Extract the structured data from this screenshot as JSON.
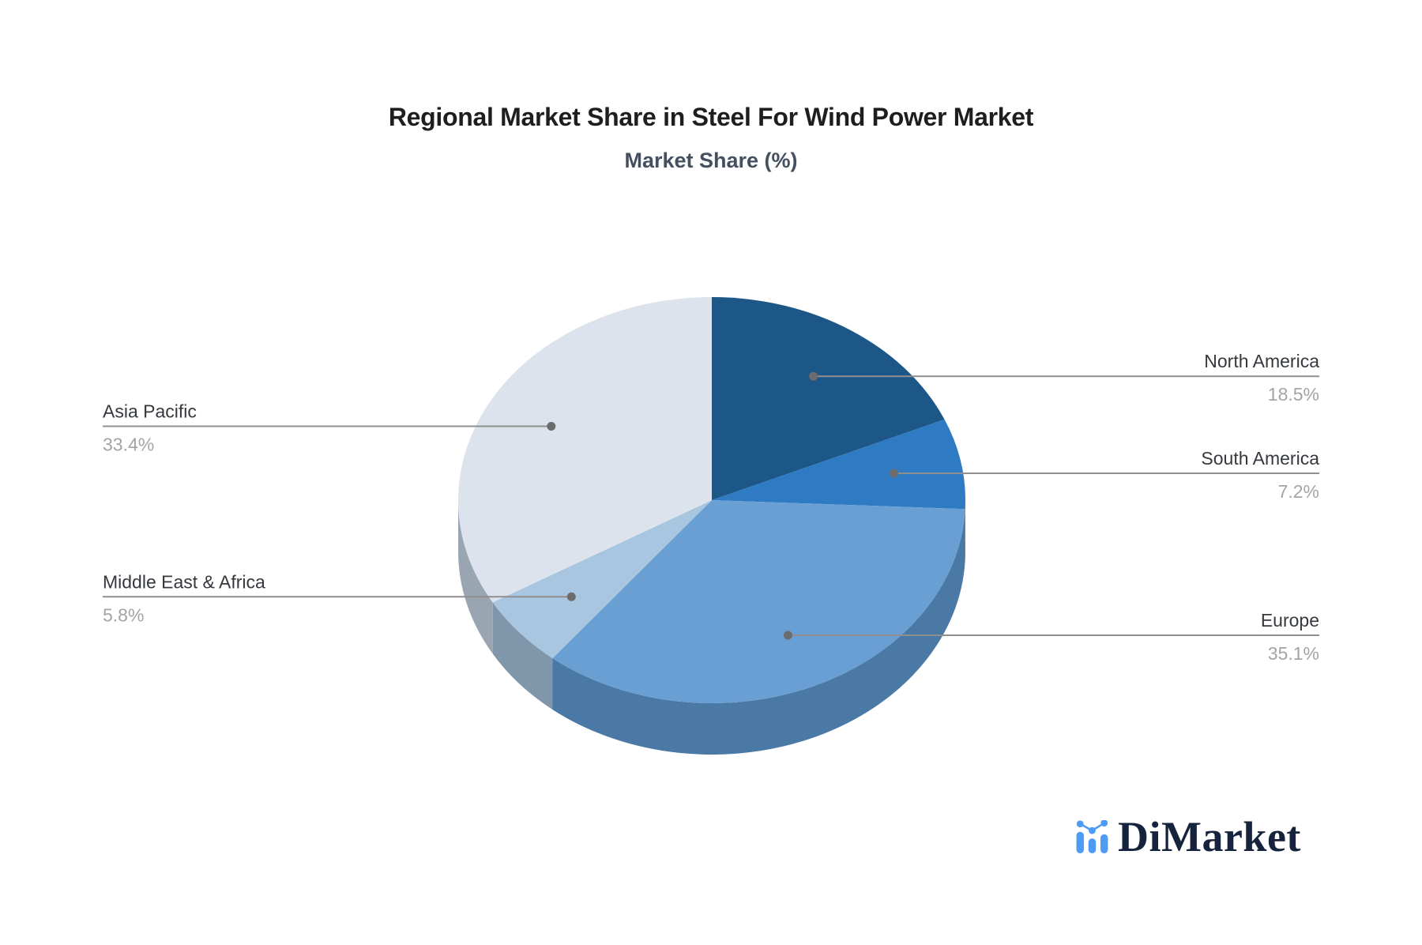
{
  "chart": {
    "title": "Regional Market Share in Steel For Wind Power Market",
    "subtitle": "Market Share (%)"
  },
  "chart_data": {
    "type": "pie",
    "style": "3d",
    "title": "Regional Market Share in Steel For Wind Power Market",
    "subtitle": "Market Share (%)",
    "unit": "%",
    "start_angle": "12-o-clock",
    "direction": "clockwise",
    "slices": [
      {
        "label": "North America",
        "value": 18.5,
        "display": "18.5%",
        "color": "#1d5788",
        "side_color": "#174569",
        "label_side": "right"
      },
      {
        "label": "South America",
        "value": 7.2,
        "display": "7.2%",
        "color": "#2e7bc4",
        "side_color": "#25629c",
        "label_side": "right"
      },
      {
        "label": "Europe",
        "value": 35.1,
        "display": "35.1%",
        "color": "#6a9fd3",
        "side_color": "#4b79a5",
        "label_side": "right"
      },
      {
        "label": "Middle East & Africa",
        "value": 5.8,
        "display": "5.8%",
        "color": "#a9c6e0",
        "side_color": "#8096ab",
        "label_side": "left"
      },
      {
        "label": "Asia Pacific",
        "value": 33.4,
        "display": "33.4%",
        "color": "#dce3ed",
        "side_color": "#9aa5b2",
        "label_side": "left"
      }
    ],
    "label_text_color": "#35393d",
    "value_text_color": "#a4a4a4",
    "leader_line_color": "#8f8f8f",
    "leader_dot_color": "#6c6c6c",
    "legend": "none"
  },
  "footer": {
    "brand": "DiMarket",
    "brand_color": "#16233c",
    "icon_color": "#4d9bf5",
    "icon": "bar-line-chart-icon"
  }
}
